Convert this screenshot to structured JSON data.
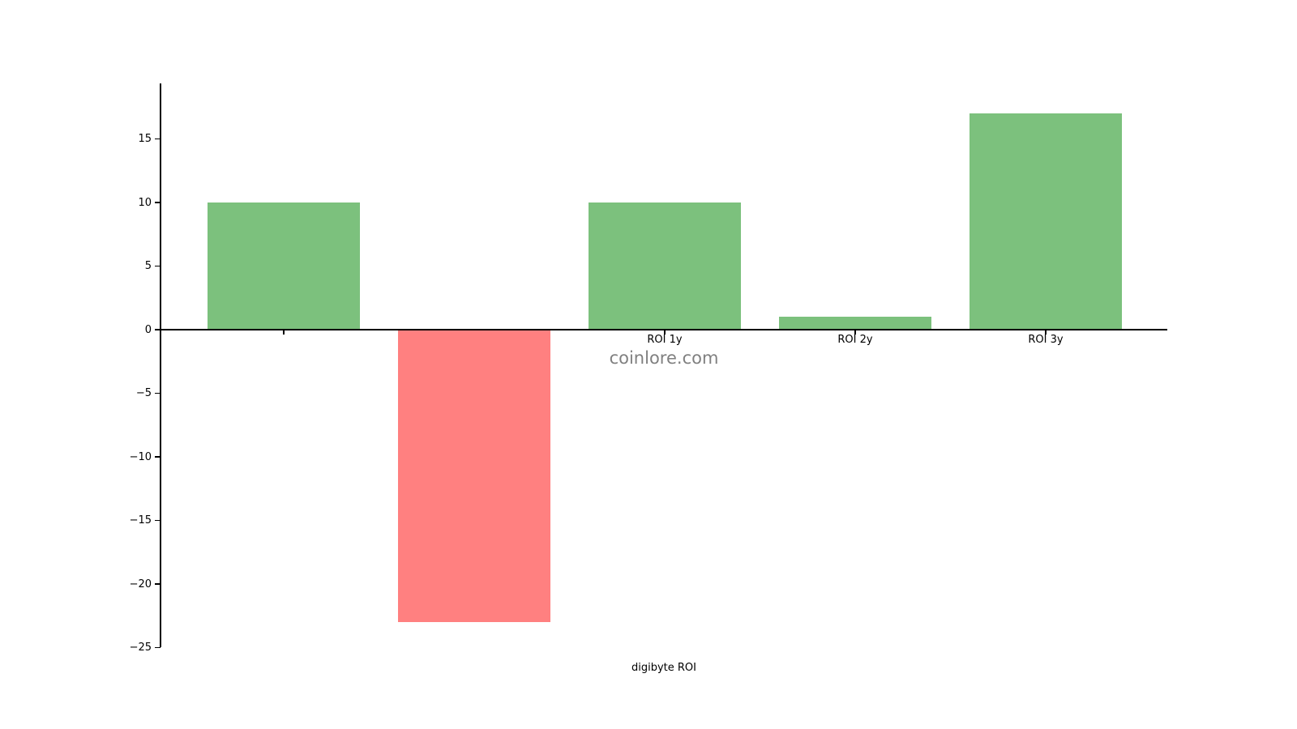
{
  "page": {
    "background_color": "#ffffff"
  },
  "chart_data": {
    "type": "bar",
    "title": "",
    "xlabel": "digibyte ROI",
    "ylabel": "",
    "watermark": "coinlore.com",
    "categories": [
      "",
      "",
      "ROI 1y",
      "ROI 2y",
      "ROI 3y"
    ],
    "values": [
      10,
      -23,
      10,
      1,
      17
    ],
    "bar_colors": [
      "#7cc17d",
      "#ff8080",
      "#7cc17d",
      "#7cc17d",
      "#7cc17d"
    ],
    "positive_color": "#7cc17d",
    "negative_color": "#ff8080",
    "axis_color": "#000000",
    "watermark_color": "#808080",
    "grid": false,
    "legend": "none",
    "ylim": [
      -25,
      19.4
    ],
    "yticks": [
      {
        "value": 15,
        "label": "15"
      },
      {
        "value": 10,
        "label": "10"
      },
      {
        "value": 5,
        "label": "5"
      },
      {
        "value": 0,
        "label": "0"
      },
      {
        "value": -5,
        "label": "−5"
      },
      {
        "value": -10,
        "label": "−10"
      },
      {
        "value": -15,
        "label": "−15"
      },
      {
        "value": -20,
        "label": "−20"
      },
      {
        "value": -25,
        "label": "−25"
      }
    ]
  }
}
